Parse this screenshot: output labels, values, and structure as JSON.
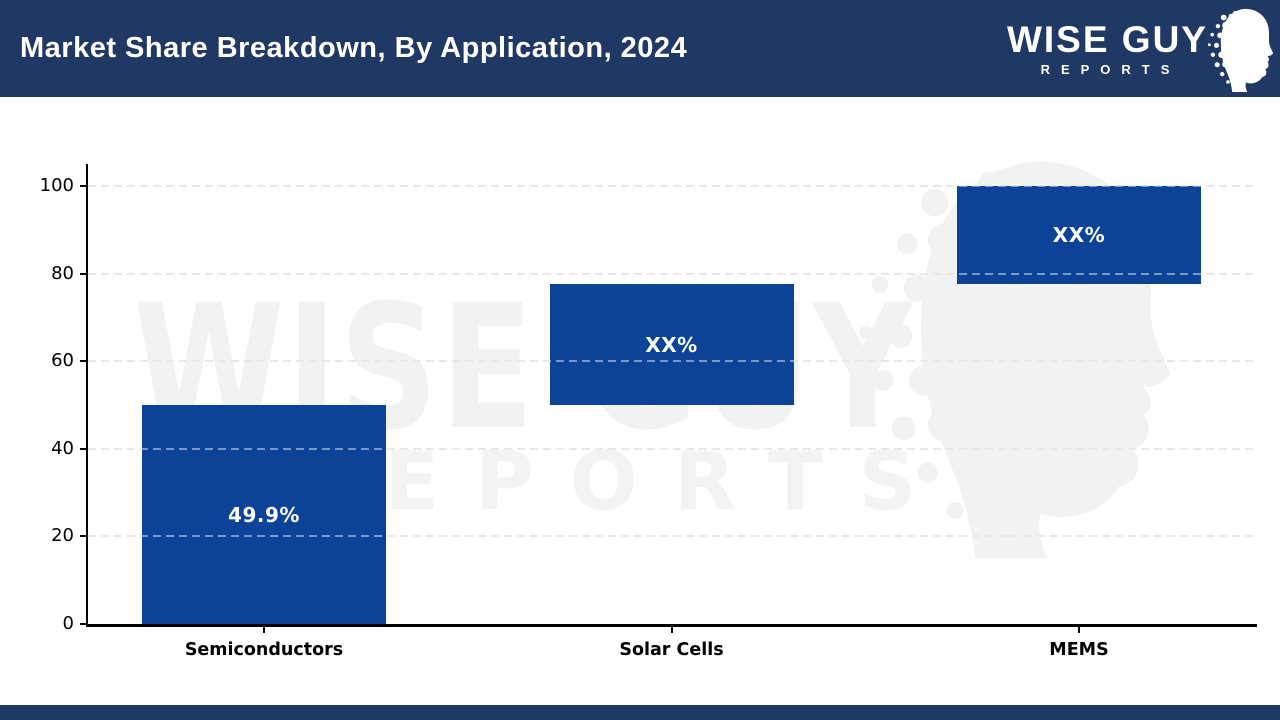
{
  "header": {
    "title": "Market Share Breakdown, By Application, 2024",
    "logo": {
      "line1": "WISE GUY",
      "line2": "REPORTS"
    }
  },
  "watermark": {
    "line1": "WISE GUY",
    "line2": "REPORTS"
  },
  "colors": {
    "header_bg": "#1f3864",
    "footer_bg": "#1f3864",
    "bar": "#0b4398",
    "bar_label": "#ffffff",
    "grid": "#d6d6d6",
    "axis": "#000000",
    "watermark": "#f2f2f4",
    "title_text": "#ffffff"
  },
  "chart_data": {
    "type": "bar",
    "subtype": "waterfall",
    "title": "Market Share Breakdown, By Application, 2024",
    "categories": [
      "Semiconductors",
      "Solar Cells",
      "MEMS"
    ],
    "bars": [
      {
        "category": "Semiconductors",
        "start": 0,
        "end": 49.9,
        "label": "49.9%"
      },
      {
        "category": "Solar Cells",
        "start": 49.9,
        "end": 77.7,
        "label": "XX%"
      },
      {
        "category": "MEMS",
        "start": 77.7,
        "end": 100,
        "label": "XX%"
      }
    ],
    "xlabel": "",
    "ylabel": "",
    "ylim": [
      0,
      100
    ],
    "yticks": [
      0,
      20,
      40,
      60,
      80,
      100
    ],
    "grid": "horizontal-dashed",
    "legend": "none",
    "bar_color": "#0b4398",
    "bar_label_color": "#ffffff"
  }
}
